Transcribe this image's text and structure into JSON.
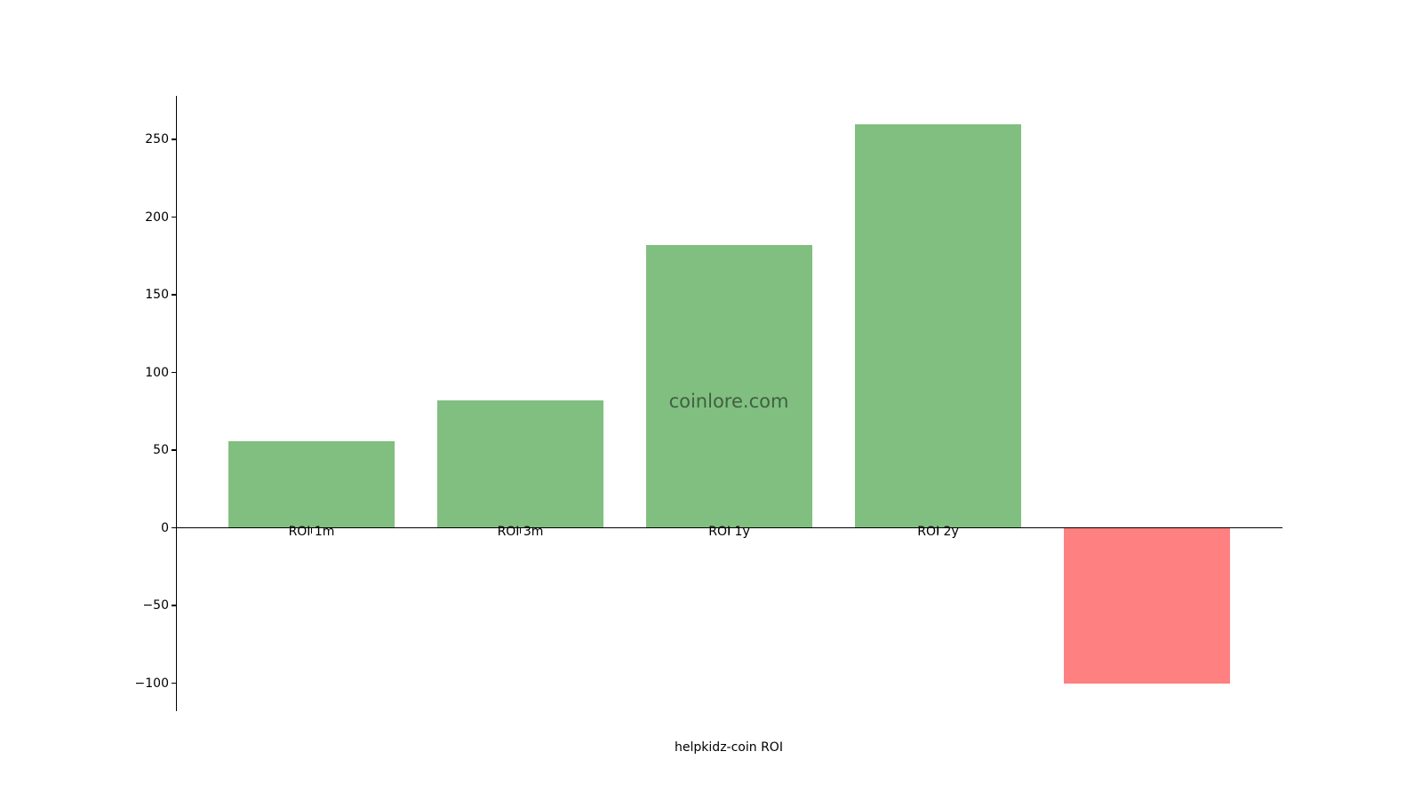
{
  "chart_data": {
    "type": "bar",
    "title": "",
    "xlabel": "helpkidz-coin ROI",
    "ylabel": "",
    "watermark": "coinlore.com",
    "categories": [
      "ROI 1m",
      "ROI 3m",
      "ROI 1y",
      "ROI 2y",
      ""
    ],
    "values": [
      56,
      82,
      182,
      260,
      -100
    ],
    "bar_colors": [
      "#80bf80",
      "#80bf80",
      "#80bf80",
      "#80bf80",
      "#ff8080"
    ],
    "positive_color": "#80bf80",
    "negative_color": "#ff8080",
    "yticks": [
      250,
      200,
      150,
      100,
      50,
      0,
      -50,
      -100
    ],
    "ytick_labels": [
      "250",
      "200",
      "150",
      "100",
      "50",
      "0",
      "−50",
      "−100"
    ],
    "ylim": [
      -118,
      278
    ],
    "grid": false,
    "legend": null,
    "axis_color": "#000000",
    "background_color": "#ffffff"
  }
}
